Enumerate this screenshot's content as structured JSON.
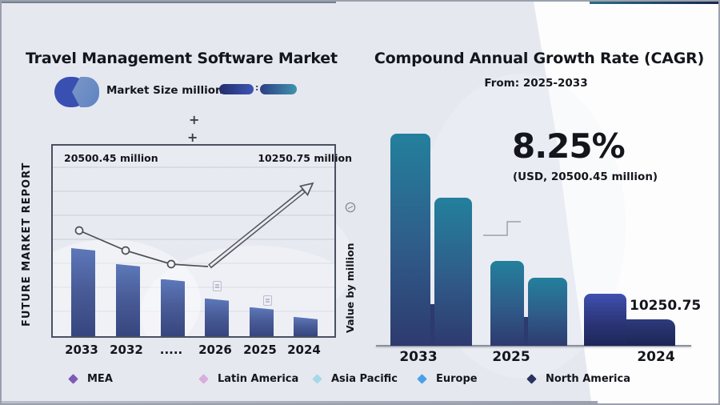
{
  "page": {
    "background": "#e6e8f0",
    "accent_teal": "#23809d",
    "accent_navy": "#2c3a6e",
    "accent_royal": "#3f51b0",
    "bar_blue": "#5d78ba"
  },
  "left": {
    "title": "Travel Management Software Market",
    "legend_label": "Market Size million",
    "ratio_separator": ":",
    "plus_mark": "+",
    "side_label": "FUTURE MARKET REPORT",
    "value_axis_label": "Value by million",
    "annotation_left": "20500.45 million",
    "annotation_right": "10250.75 million"
  },
  "right": {
    "title": "Compound Annual Growth Rate (CAGR)",
    "subtitle": "From: 2025-2033",
    "cagr_value": "8.25%",
    "cagr_basis": "(USD, 20500.45 million)",
    "bar_annotation": "10250.75"
  },
  "legend": {
    "items": [
      {
        "label": "MEA",
        "color": "#7d5ab5"
      },
      {
        "label": "Latin America",
        "color": "#d8aedd"
      },
      {
        "label": "Asia Pacific",
        "color": "#a6d9e8"
      },
      {
        "label": "Europe",
        "color": "#4aa0e8"
      },
      {
        "label": "North America",
        "color": "#29335f"
      }
    ]
  },
  "chart_data": [
    {
      "type": "bar",
      "title": "Travel Management Software Market",
      "ylabel": "Value by million",
      "grid": true,
      "categories": [
        "2033",
        "2032",
        ".....",
        "2026",
        "2025",
        "2024"
      ],
      "series": [
        {
          "name": "Market Size million",
          "values_relative": [
            100,
            82,
            65,
            43,
            33,
            22
          ]
        }
      ],
      "annotations": [
        "20500.45 million",
        "10250.75 million"
      ],
      "overlay": "declining marker line over 2033-2026 then outlined arrow rising to top right"
    },
    {
      "type": "bar",
      "title": "Compound Annual Growth Rate (CAGR)",
      "subtitle": "From: 2025-2033",
      "categories": [
        "2033",
        "2025",
        "2024"
      ],
      "series": [
        {
          "name": "front-bar",
          "values_relative": [
            100,
            40,
            24.5
          ]
        },
        {
          "name": "back-bar",
          "values_relative": [
            70,
            32,
            12.5
          ]
        }
      ],
      "annotations": [
        "8.25%",
        "(USD, 20500.45 million)",
        "10250.75"
      ],
      "legend_position": "bottom"
    }
  ]
}
